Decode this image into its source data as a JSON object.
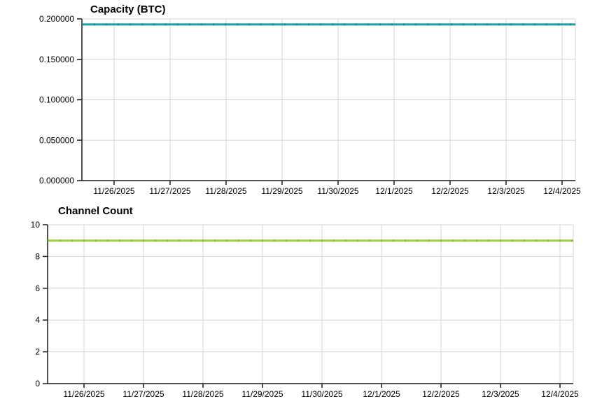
{
  "colors": {
    "background": "#ffffff",
    "grid": "#d4d4d4",
    "axis": "#1a1a1a",
    "text": "#000000"
  },
  "chart_data": [
    {
      "type": "line",
      "title": "Capacity (BTC)",
      "xlabel": "",
      "ylabel": "",
      "x_tick_labels": [
        "11/26/2025",
        "11/27/2025",
        "11/28/2025",
        "11/29/2025",
        "11/30/2025",
        "12/1/2025",
        "12/2/2025",
        "12/3/2025",
        "12/4/2025"
      ],
      "ylim": [
        0,
        0.2
      ],
      "yticks": [
        0,
        0.05,
        0.1,
        0.15,
        0.2
      ],
      "ytick_labels": [
        "0.000000",
        "0.050000",
        "0.100000",
        "0.150000",
        "0.200000"
      ],
      "grid": "on",
      "legend": "none",
      "series": [
        {
          "name": "Capacity (BTC)",
          "constant_value": 0.1932,
          "color": "#1d9e9f",
          "marker_color": "#0f8d8e"
        }
      ]
    },
    {
      "type": "line",
      "title": "Channel Count",
      "xlabel": "",
      "ylabel": "",
      "x_tick_labels": [
        "11/26/2025",
        "11/27/2025",
        "11/28/2025",
        "11/29/2025",
        "11/30/2025",
        "12/1/2025",
        "12/2/2025",
        "12/3/2025",
        "12/4/2025"
      ],
      "ylim": [
        0,
        10
      ],
      "yticks": [
        0,
        2,
        4,
        6,
        8,
        10
      ],
      "ytick_labels": [
        "0",
        "2",
        "4",
        "6",
        "8",
        "10"
      ],
      "grid": "on",
      "legend": "none",
      "series": [
        {
          "name": "Channel Count",
          "constant_value": 9,
          "color": "#9fce42",
          "marker_color": "#8ebd34"
        }
      ]
    }
  ]
}
